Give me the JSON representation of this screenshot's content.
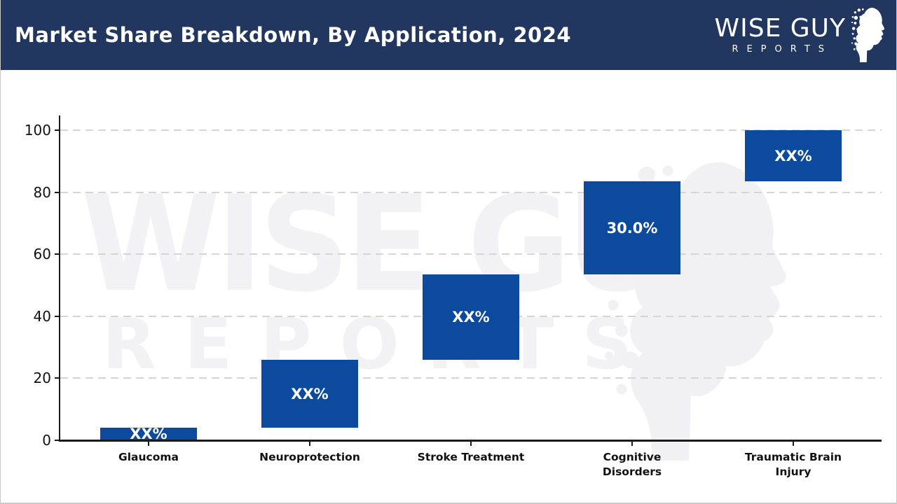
{
  "header": {
    "title": "Market Share Breakdown, By Application, 2024",
    "logo": {
      "wordmark": "WISE GUY",
      "subtext": "REPORTS"
    }
  },
  "watermark": {
    "wordmark": "WISE GUY",
    "subtext": "REPORTS"
  },
  "colors": {
    "header_bg": "#223760",
    "bar_blue": "#0c4a9d",
    "grid_gray": "#d5d5d5",
    "axis_black": "#1a1a1a",
    "label_black": "#111111",
    "bar_label_white": "#ffffff",
    "watermark_gray": "#f2f2f4",
    "page_border_gray": "#c9c9c9"
  },
  "chart_data": {
    "type": "bar",
    "subtype": "floating-waterfall",
    "title": "Market Share Breakdown, By Application, 2024",
    "categories": [
      "Glaucoma",
      "Neuroprotection",
      "Stroke Treatment",
      "Cognitive Disorders",
      "Traumatic Brain Injury"
    ],
    "category_lines": [
      [
        "Glaucoma"
      ],
      [
        "Neuroprotection"
      ],
      [
        "Stroke Treatment"
      ],
      [
        "Cognitive",
        "Disorders"
      ],
      [
        "Traumatic Brain",
        "Injury"
      ]
    ],
    "series": [
      {
        "name": "Market share (%)",
        "segments": [
          {
            "category": "Glaucoma",
            "from": 0,
            "to": 4,
            "label": "XX%"
          },
          {
            "category": "Neuroprotection",
            "from": 4,
            "to": 26,
            "label": "XX%"
          },
          {
            "category": "Stroke Treatment",
            "from": 26,
            "to": 53.5,
            "label": "XX%"
          },
          {
            "category": "Cognitive Disorders",
            "from": 53.5,
            "to": 83.5,
            "label": "30.0%"
          },
          {
            "category": "Traumatic Brain Injury",
            "from": 83.5,
            "to": 100,
            "label": "XX%"
          }
        ]
      }
    ],
    "xlabel": "",
    "ylabel": "",
    "ylim": [
      0,
      105
    ],
    "yticks": [
      0,
      20,
      40,
      60,
      80,
      100
    ],
    "grid": "horizontal-dashed",
    "legend": false,
    "bar_color": "#0c4a9d"
  }
}
